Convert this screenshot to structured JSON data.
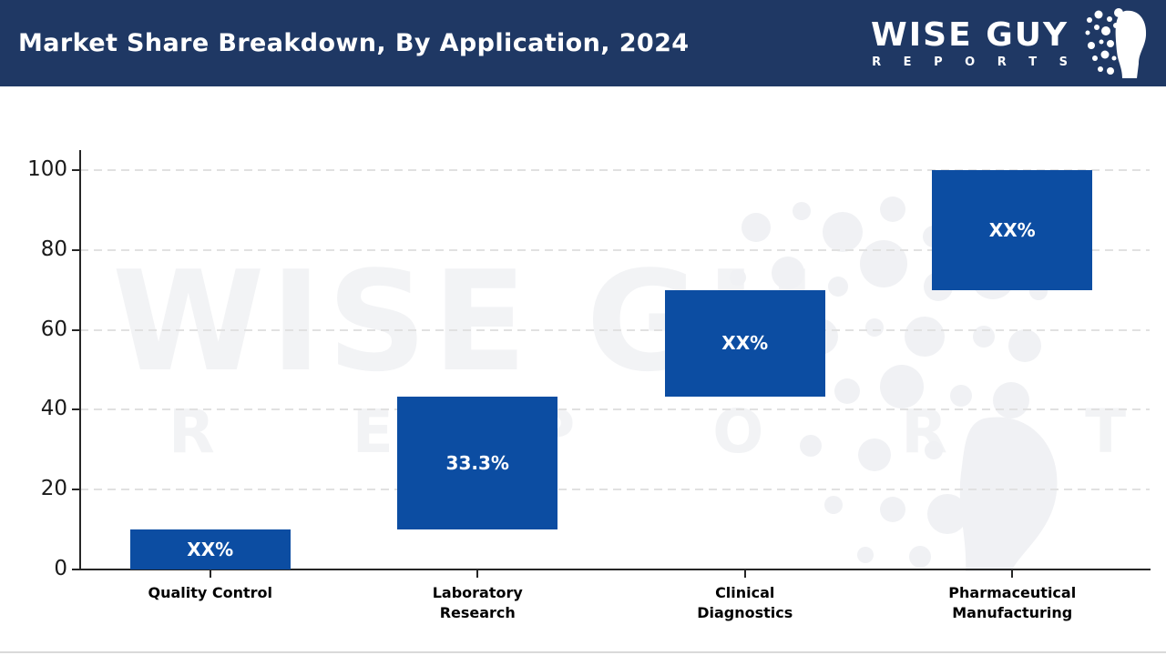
{
  "header": {
    "title": "Market Share Breakdown, By Application, 2024",
    "logo": {
      "line1": "WISE GUY",
      "line2": "R E P O R T S"
    }
  },
  "watermark": {
    "line1": "WISE GU",
    "line2": "R E P O R T S"
  },
  "colors": {
    "header_bg": "#1f3864",
    "bar": "#0c4da2",
    "axis": "#262626",
    "gridline": "#e1e1e1",
    "watermark": "#f2f3f5",
    "bar_label_text": "#ffffff"
  },
  "chart_data": {
    "type": "bar",
    "subtype": "waterfall",
    "title": "Market Share Breakdown, By Application, 2024",
    "xlabel": "",
    "ylabel": "",
    "categories": [
      "Quality Control",
      "Laboratory Research",
      "Clinical Diagnostics",
      "Pharmaceutical Manufacturing"
    ],
    "category_lines": [
      [
        "Quality Control"
      ],
      [
        "Laboratory",
        "Research"
      ],
      [
        "Clinical",
        "Diagnostics"
      ],
      [
        "Pharmaceutical",
        "Manufacturing"
      ]
    ],
    "segments": [
      {
        "start": 0,
        "end": 10,
        "value": 10,
        "label": "XX%"
      },
      {
        "start": 10,
        "end": 43.3,
        "value": 33.3,
        "label": "33.3%"
      },
      {
        "start": 43.3,
        "end": 70,
        "value": 26.7,
        "label": "XX%"
      },
      {
        "start": 70,
        "end": 100,
        "value": 30,
        "label": "XX%"
      }
    ],
    "yticks": [
      0,
      20,
      40,
      60,
      80,
      100
    ],
    "ylim": [
      0,
      100
    ],
    "grid": "horizontal-dashed",
    "legend": "none"
  }
}
